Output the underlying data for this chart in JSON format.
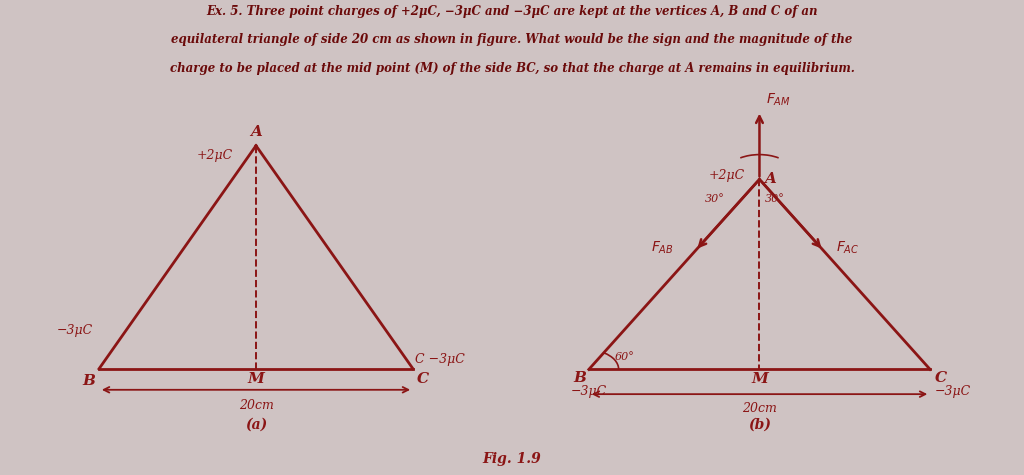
{
  "background_color": "#cfc3c3",
  "title_line1": "Ex. 5. Three point charges of +2μC, −3μC and −3μC are kept at the vertices A, B and C of an",
  "title_line2": "equilateral triangle of side 20 cm as shown in figure. What would be the sign and the magnitude of the",
  "title_line3": "charge to be placed at the mid point (M) of the side BC, so that the charge at A remains in equilibrium.",
  "fig_label": "Fig. 1.9",
  "subfig_a_label": "(a)",
  "subfig_b_label": "(b)",
  "triangle_color": "#8b1515",
  "dark_red": "#6b0a0a",
  "line_color": "#8b1515"
}
